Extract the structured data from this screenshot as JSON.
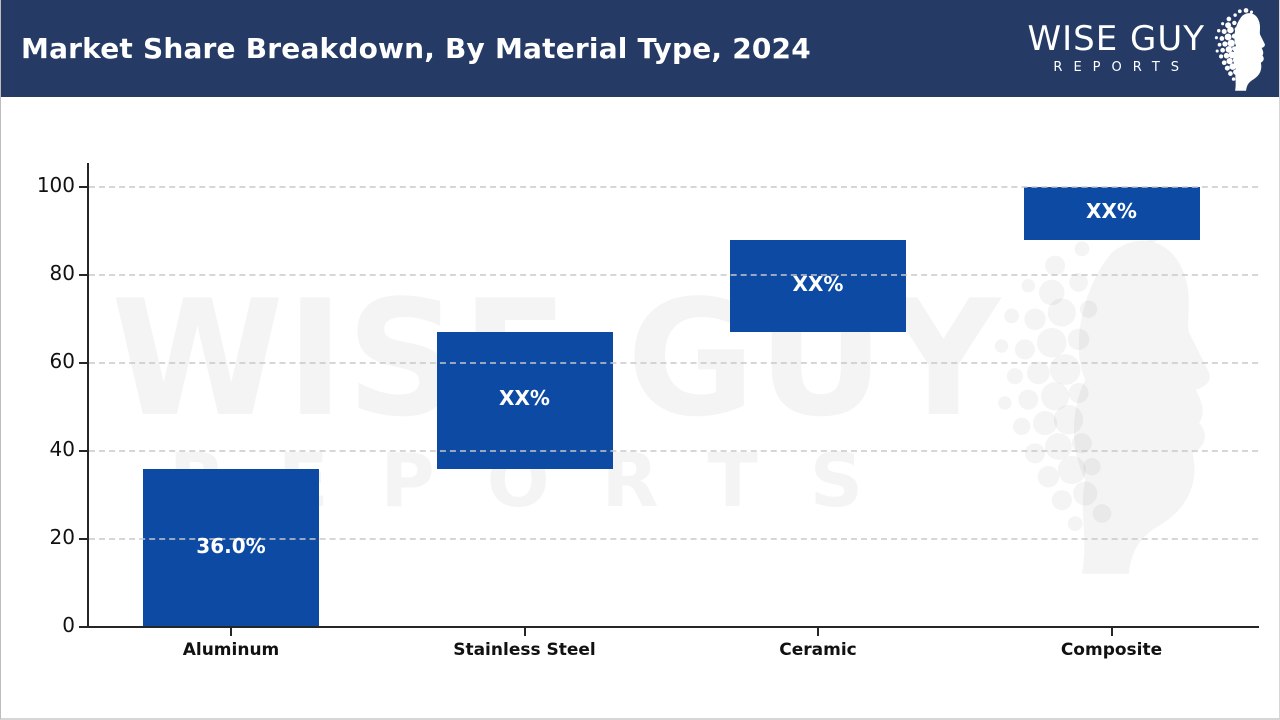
{
  "header": {
    "title": "Market Share Breakdown, By Material Type, 2024",
    "logo": {
      "line1": "WISE GUY",
      "line2": "REPORTS"
    }
  },
  "watermark": {
    "line1": "WISE GUY",
    "line2": "REPORTS"
  },
  "colors": {
    "header_bg": "#253b66",
    "header_text": "#ffffff",
    "bar": "#0d4aa3",
    "bar_label": "#ffffff",
    "axis": "#262626",
    "tick_label": "#111111",
    "gridline": "#d4d4d4"
  },
  "chart_data": {
    "type": "bar",
    "variant": "waterfall",
    "title": "Market Share Breakdown, By Material Type, 2024",
    "categories": [
      "Aluminum",
      "Stainless Steel",
      "Ceramic",
      "Composite"
    ],
    "segments": [
      {
        "category": "Aluminum",
        "start": 0,
        "end": 36,
        "label": "36.0%"
      },
      {
        "category": "Stainless Steel",
        "start": 36,
        "end": 67,
        "label": "XX%"
      },
      {
        "category": "Ceramic",
        "start": 67,
        "end": 88,
        "label": "XX%"
      },
      {
        "category": "Composite",
        "start": 88,
        "end": 100,
        "label": "XX%"
      }
    ],
    "xlabel": "",
    "ylabel": "",
    "ylim": [
      0,
      105
    ],
    "yticks": [
      0,
      20,
      40,
      60,
      80,
      100
    ],
    "grid": "dashed horizontal, drawn above bars",
    "legend": "none",
    "bar_color": "#0d4aa3"
  }
}
